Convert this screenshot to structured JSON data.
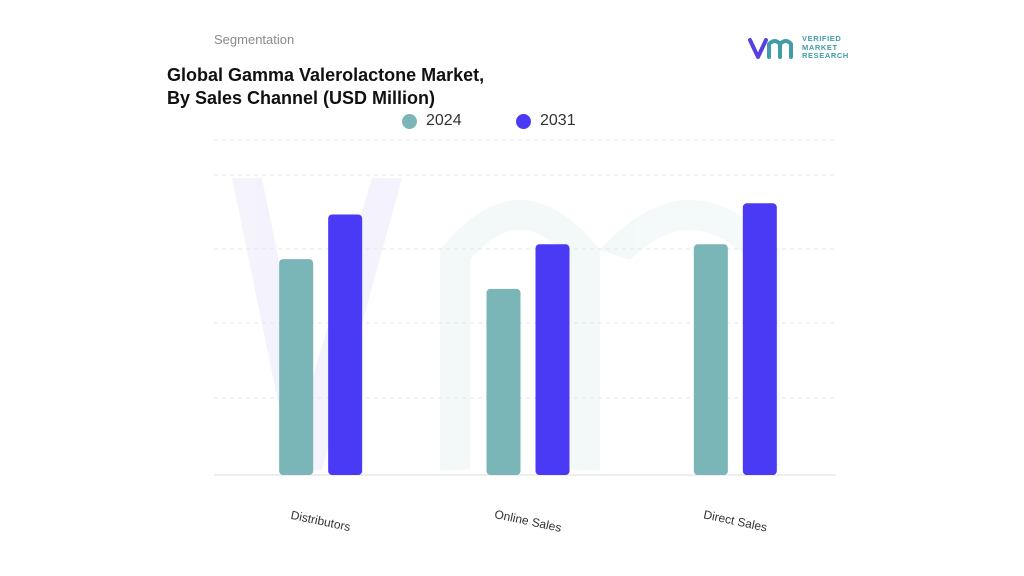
{
  "header": {
    "section_label": "Segmentation",
    "title_line1": "Global Gamma Valerolactone Market,",
    "title_line2": "By Sales Channel (USD Million)"
  },
  "logo": {
    "icon": "vmr-logo-icon",
    "line1": "VERIFIED",
    "line2": "MARKET",
    "line3": "RESEARCH",
    "color": "#3f9ca8",
    "accent": "#5b3fe0"
  },
  "chart_data": {
    "type": "bar",
    "title": "Global Gamma Valerolactone Market, By Sales Channel (USD Million)",
    "categories": [
      "Distributors",
      "Online Sales",
      "Direct Sales"
    ],
    "series": [
      {
        "name": "2024",
        "color": "#7ab5b8",
        "values": [
          58,
          50,
          62
        ]
      },
      {
        "name": "2031",
        "color": "#4a3af5",
        "values": [
          70,
          62,
          73
        ]
      }
    ],
    "ylim": [
      0,
      90
    ],
    "grid": true,
    "legend_position": "top",
    "y_axis_labels_shown": false,
    "xlabel": "",
    "ylabel": ""
  }
}
